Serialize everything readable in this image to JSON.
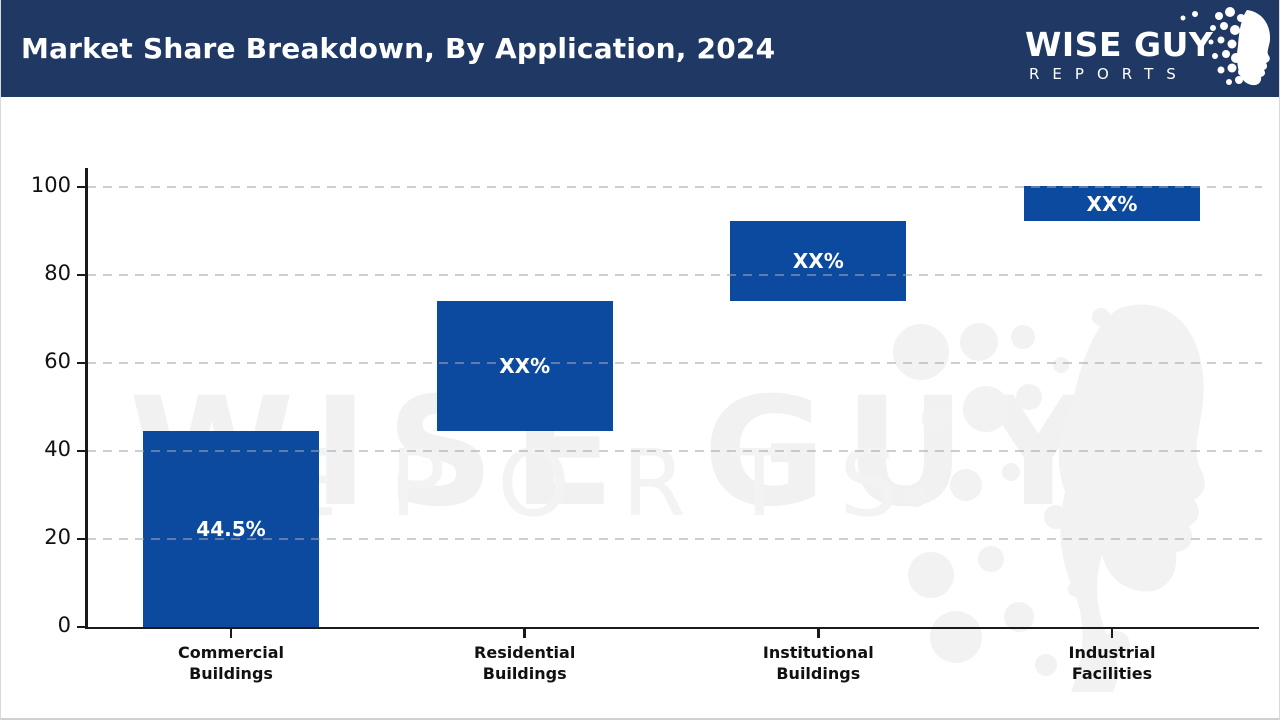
{
  "header": {
    "title": "Market Share Breakdown, By Application, 2024",
    "bg_color": "#1f3864",
    "logo": {
      "line1": "WISE GUY",
      "line2": "REPORTS"
    }
  },
  "watermark": {
    "line1": "WISE GUY",
    "line2": "REPORTS"
  },
  "chart_data": {
    "type": "bar",
    "subtype": "waterfall-stacked-percentage",
    "title": "Market Share Breakdown, By Application, 2024",
    "categories": [
      [
        "Commercial",
        "Buildings"
      ],
      [
        "Residential",
        "Buildings"
      ],
      [
        "Institutional",
        "Buildings"
      ],
      [
        "Industrial",
        "Facilities"
      ]
    ],
    "segments": [
      {
        "category": "Commercial Buildings",
        "start": 0,
        "end": 44.5,
        "label": "44.5%"
      },
      {
        "category": "Residential Buildings",
        "start": 44.5,
        "end": 74.2,
        "label": "XX%"
      },
      {
        "category": "Institutional Buildings",
        "start": 74.2,
        "end": 92.2,
        "label": "XX%"
      },
      {
        "category": "Industrial Facilities",
        "start": 92.2,
        "end": 100.2,
        "label": "XX%"
      }
    ],
    "yticks": [
      0,
      20,
      40,
      60,
      80,
      100
    ],
    "ylim": [
      0,
      105
    ],
    "grid": "dashed-horizontal",
    "legend": null,
    "bar_color": "#0c4aa0",
    "label_color": "#ffffff",
    "axis_color": "#1a1a1a"
  }
}
